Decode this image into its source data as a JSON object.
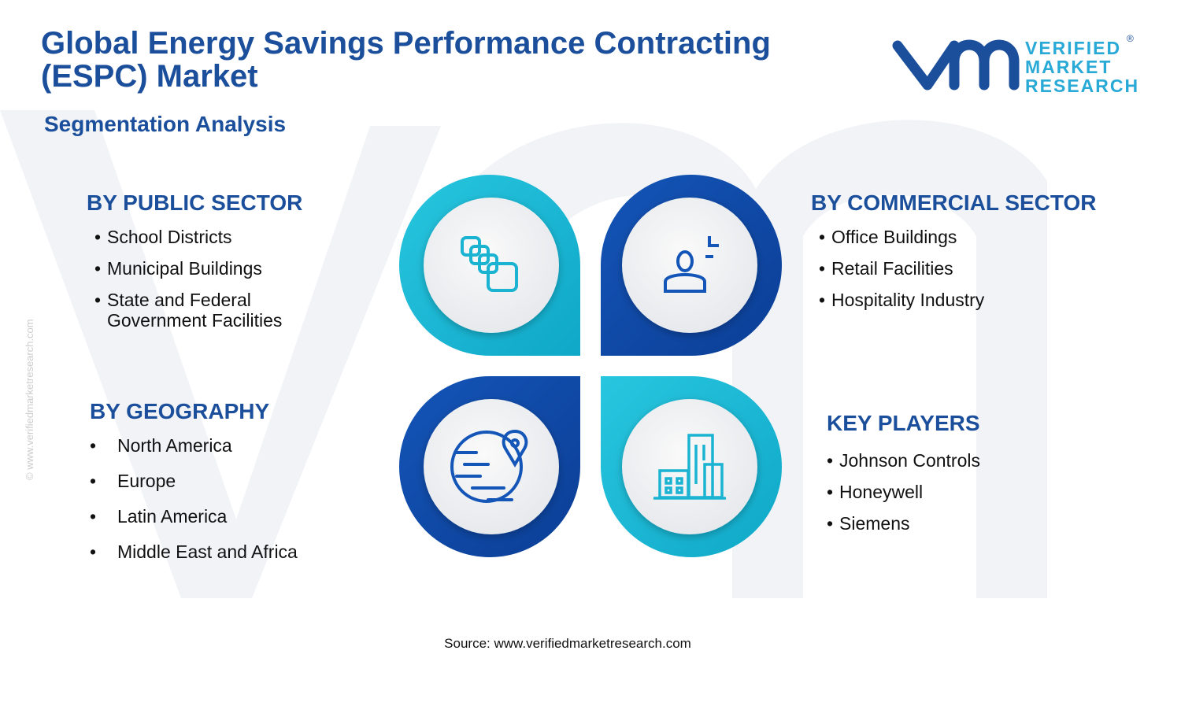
{
  "header": {
    "title": "Global Energy Savings Performance Contracting (ESPC) Market",
    "subtitle": "Segmentation Analysis"
  },
  "logo": {
    "lines": [
      "VERIFIED",
      "MARKET",
      "RESEARCH"
    ],
    "mark": "®"
  },
  "watermark": "© www.verifiedmarketresearch.com",
  "sections": [
    {
      "heading": "BY PUBLIC SECTOR",
      "items": [
        "School Districts",
        "Municipal Buildings",
        "State and Federal Government Facilities"
      ]
    },
    {
      "heading": "BY COMMERCIAL SECTOR",
      "items": [
        "Office Buildings",
        "Retail Facilities",
        "Hospitality Industry"
      ]
    },
    {
      "heading": "BY GEOGRAPHY",
      "items": [
        "North America",
        "Europe",
        "Latin America",
        "Middle East and Africa"
      ]
    },
    {
      "heading": "KEY PLAYERS",
      "items": [
        "Johnson Controls",
        "Honeywell",
        "Siemens"
      ]
    }
  ],
  "source": "Source: www.verifiedmarketresearch.com"
}
